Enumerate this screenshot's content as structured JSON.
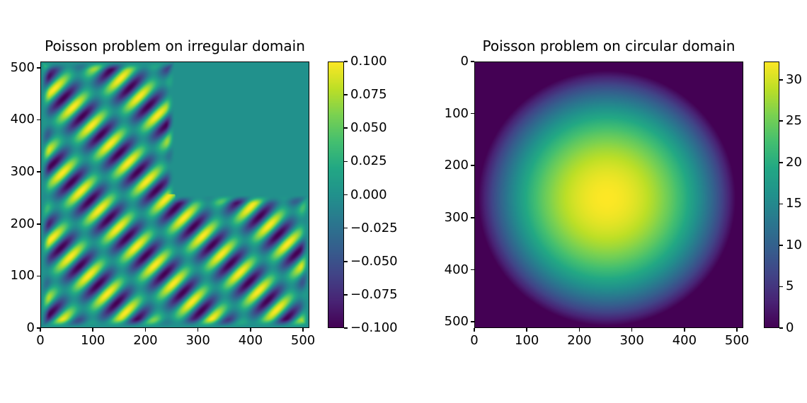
{
  "figure": {
    "background": "#ffffff",
    "axis_color": "#000000"
  },
  "left_plot": {
    "title": "Poisson problem on irregular domain",
    "x_tick_labels": [
      "0",
      "100",
      "200",
      "300",
      "400",
      "500"
    ],
    "y_tick_labels": [
      "0",
      "100",
      "200",
      "300",
      "400",
      "500"
    ],
    "colorbar_tick_labels": [
      "0.100",
      "0.075",
      "0.050",
      "0.025",
      "0.000",
      "−0.025",
      "−0.050",
      "−0.075",
      "−0.100"
    ]
  },
  "right_plot": {
    "title": "Poisson problem on circular domain",
    "x_tick_labels": [
      "0",
      "100",
      "200",
      "300",
      "400",
      "500"
    ],
    "y_tick_labels": [
      "0",
      "100",
      "200",
      "300",
      "400",
      "500"
    ],
    "colorbar_tick_labels": [
      "30",
      "25",
      "20",
      "15",
      "10",
      "5",
      "0"
    ]
  },
  "style": {
    "colormap_name": "viridis",
    "viridis_stops": [
      "#440154",
      "#482475",
      "#414487",
      "#355f8d",
      "#2a788e",
      "#21918c",
      "#22a884",
      "#44bf70",
      "#7ad151",
      "#bddf26",
      "#fde725"
    ],
    "zero_value_color": "#21918c",
    "outside_domain_color": "#440154"
  },
  "chart_data": [
    {
      "type": "heatmap",
      "title": "Poisson problem on irregular domain",
      "x_range": [
        0,
        512
      ],
      "y_range": [
        0,
        512
      ],
      "y_axis_direction": "up",
      "x_ticks": [
        0,
        100,
        200,
        300,
        400,
        500
      ],
      "y_ticks": [
        0,
        100,
        200,
        300,
        400,
        500
      ],
      "colorbar_ticks": [
        0.1,
        0.075,
        0.05,
        0.025,
        0.0,
        -0.025,
        -0.05,
        -0.075,
        -0.1
      ],
      "vmin": -0.1,
      "vmax": 0.1,
      "colormap": "viridis",
      "grid": false,
      "domain_shape": "L-shape: square [0,512]x[0,512] with top-right quadrant (x>256, y>256) removed; removed region rendered at value 0 (teal)",
      "pattern": "45-degree diagonal standing-wave stripes (parallel to y=x) alternating +0.1 (yellow) and -0.1 (dark purple) with beat-envelope nodes; zero (teal) between patches and at boundaries",
      "model": {
        "amplitude": 0.1,
        "stripe_periods_diagonal": 7.25,
        "stripe_phase": 2.356,
        "beat_periods": 1.75,
        "beat_phase": 3.74,
        "edge_taper_units": 18,
        "notch_corner": [
          256,
          256
        ]
      }
    },
    {
      "type": "heatmap",
      "title": "Poisson problem on circular domain",
      "x_range": [
        0,
        512
      ],
      "y_range": [
        0,
        512
      ],
      "y_axis_direction": "down",
      "x_ticks": [
        0,
        100,
        200,
        300,
        400,
        500
      ],
      "y_ticks": [
        0,
        100,
        200,
        300,
        400,
        500
      ],
      "colorbar_ticks": [
        30,
        25,
        20,
        15,
        10,
        5,
        0
      ],
      "vmin": 0,
      "vmax": 32.2,
      "colormap": "viridis",
      "grid": false,
      "domain_shape": "disk centered near (252,262) with radius ~245; value 0 (dark purple) outside the disk",
      "pattern": "smooth paraboloid dome, maximum ~32 at the disk center fading radially to 0 at the circular boundary",
      "model": {
        "center_x": 252,
        "center_y": 262,
        "radius": 245,
        "peak": 32.2
      }
    }
  ]
}
